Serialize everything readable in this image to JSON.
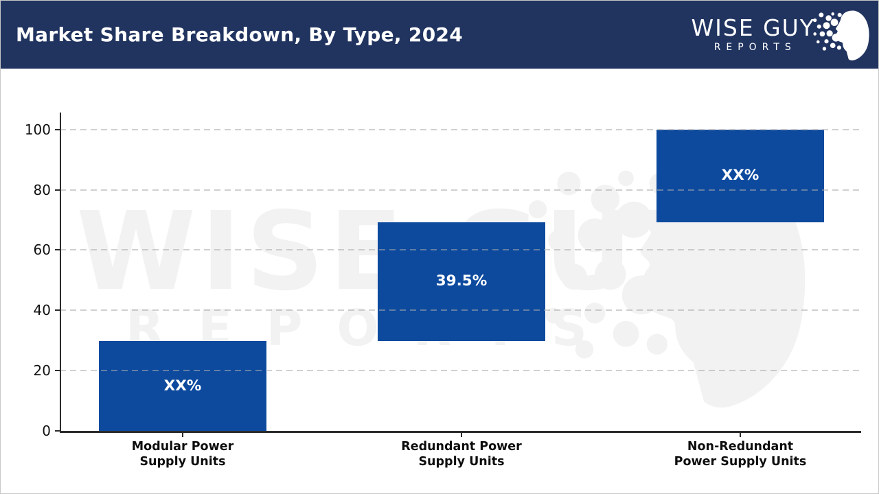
{
  "header": {
    "title": "Market Share Breakdown, By Type, 2024",
    "background": "#213460"
  },
  "brand": {
    "name": "WISE GUY",
    "sub": "REPORTS"
  },
  "watermark": {
    "line1": "WISE GUY",
    "line2": "REPORTS"
  },
  "chart_data": {
    "type": "bar",
    "subtype": "waterfall",
    "title": "Market Share Breakdown, By Type, 2024",
    "categories": [
      [
        "Modular Power",
        "Supply Units"
      ],
      [
        "Redundant Power",
        "Supply Units"
      ],
      [
        "Non-Redundant",
        "Power Supply Units"
      ]
    ],
    "segments": [
      {
        "category": "Modular Power Supply Units",
        "start": 0,
        "end": 29.8,
        "label": "XX%"
      },
      {
        "category": "Redundant Power Supply Units",
        "start": 29.8,
        "end": 69.3,
        "label": "39.5%"
      },
      {
        "category": "Non-Redundant Power Supply Units",
        "start": 69.3,
        "end": 100,
        "label": "XX%"
      }
    ],
    "ylim": [
      0,
      100
    ],
    "yticks": [
      0,
      20,
      40,
      60,
      80,
      100
    ],
    "xlabel": "",
    "ylabel": "",
    "grid": true,
    "grid_style": "dashed",
    "legend": false,
    "bar_color": "#0d4a9e",
    "bar_label_color": "#ffffff",
    "axis_color": "#2b2b2b",
    "grid_color": "#c9c9c9",
    "tick_label_color": "#111111",
    "category_label_color": "#0d0d0d"
  }
}
